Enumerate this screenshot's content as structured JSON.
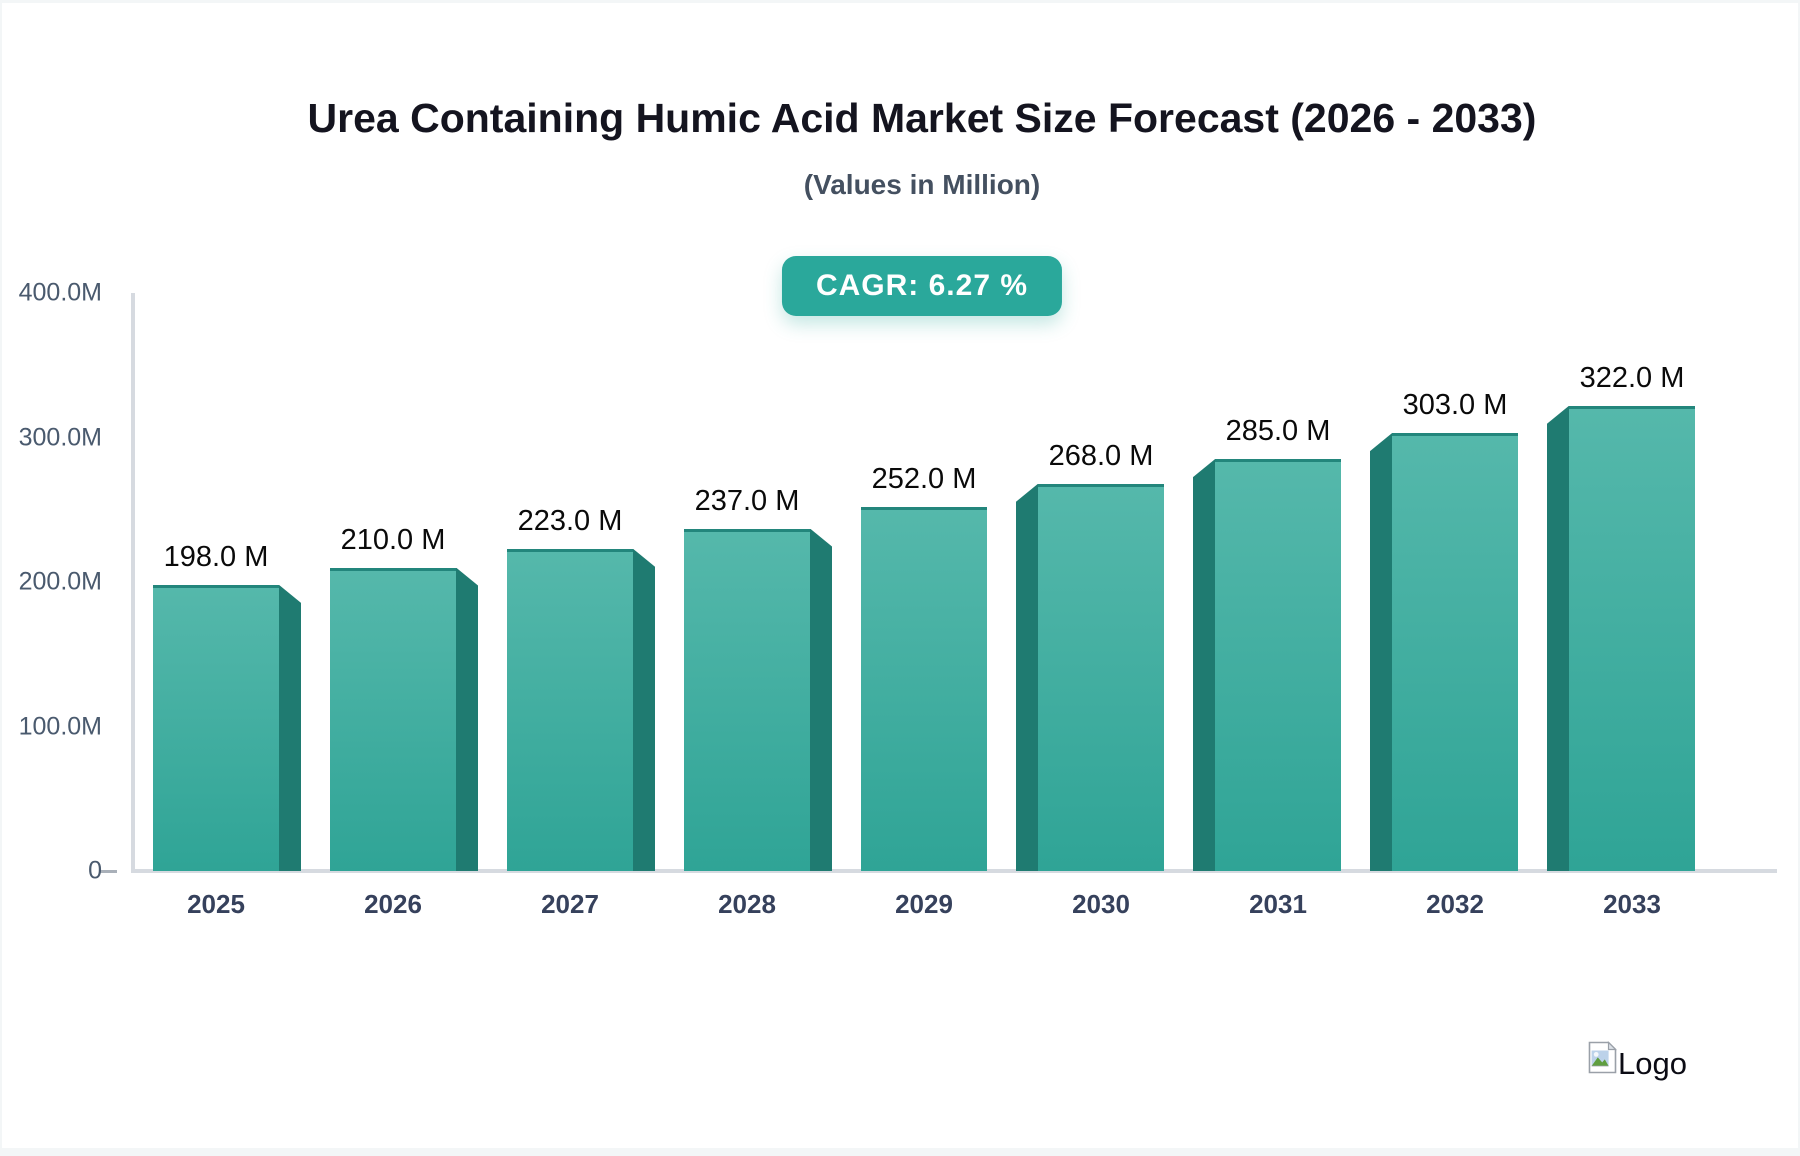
{
  "header": {
    "title": "Urea Containing Humic Acid Market Size Forecast (2026 - 2033)",
    "subtitle": "(Values in Million)",
    "cagr_badge": "CAGR: 6.27 %"
  },
  "footer": {
    "logo_alt": "Logo"
  },
  "colors": {
    "teal_accent": "#2aa89b",
    "bar_face_top": "#55b8ab",
    "bar_face_bottom": "#2fa496",
    "bar_side": "#1f7b71",
    "bar_top_edge": "#23867c",
    "axis_line": "#d6dae0",
    "y_tick_text": "#4a5a6e",
    "x_tick_text": "#36415c",
    "value_text": "#0a0a0a"
  },
  "chart_data": {
    "type": "bar",
    "title": "Urea Containing Humic Acid Market Size Forecast (2026 - 2033)",
    "subtitle": "(Values in Million)",
    "unit": "Million",
    "cagr_percent": 6.27,
    "categories": [
      "2025",
      "2026",
      "2027",
      "2028",
      "2029",
      "2030",
      "2031",
      "2032",
      "2033"
    ],
    "values": [
      198.0,
      210.0,
      223.0,
      237.0,
      252.0,
      268.0,
      285.0,
      303.0,
      322.0
    ],
    "bar_labels": [
      "198.0 M",
      "210.0 M",
      "223.0 M",
      "237.0 M",
      "252.0 M",
      "268.0 M",
      "285.0 M",
      "303.0 M",
      "322.0 M"
    ],
    "y_ticks": [
      {
        "label": "400.0M",
        "value": 400
      },
      {
        "label": "300.0M",
        "value": 300
      },
      {
        "label": "200.0M",
        "value": 200
      },
      {
        "label": "100.0M",
        "value": 100
      },
      {
        "label": "0",
        "value": 0
      }
    ],
    "ylim": [
      0,
      400
    ],
    "grid": false,
    "legend": false,
    "bar_style": "3d-bevel-teal"
  }
}
